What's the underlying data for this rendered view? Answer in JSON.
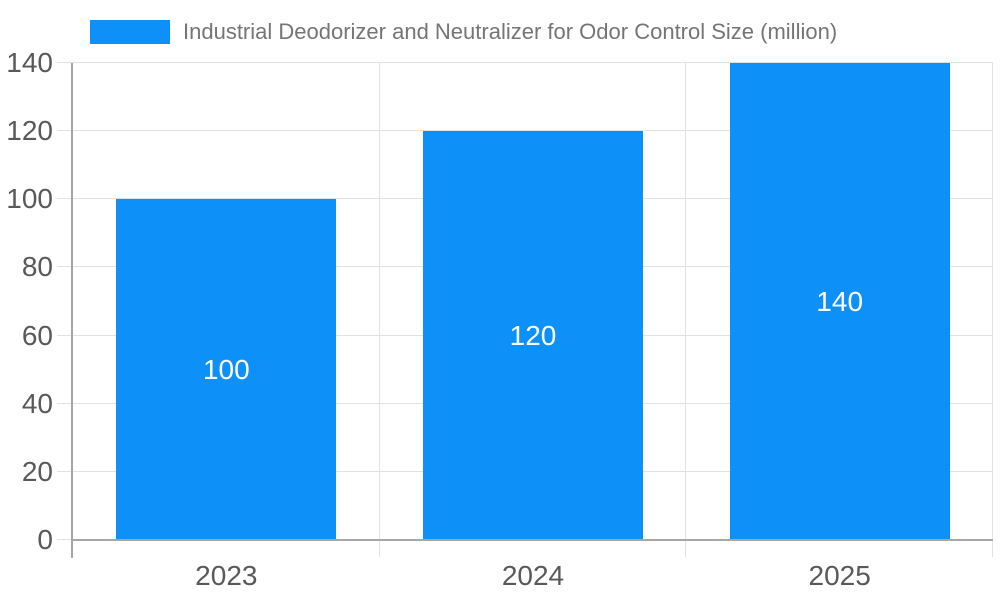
{
  "chart_data": {
    "type": "bar",
    "title": "Industrial Deodorizer and Neutralizer for Odor Control Size (million)",
    "categories": [
      "2023",
      "2024",
      "2025"
    ],
    "values": [
      100,
      120,
      140
    ],
    "bar_labels": [
      "100",
      "120",
      "140"
    ],
    "series": [
      {
        "name": "Industrial Deodorizer and Neutralizer for Odor Control Size (million)",
        "values": [
          100,
          120,
          140
        ]
      }
    ],
    "xlabel": "",
    "ylabel": "",
    "ylim": [
      0,
      140
    ],
    "yticks": [
      0,
      20,
      40,
      60,
      80,
      100,
      120,
      140
    ],
    "grid": true,
    "legend_position": "top-left",
    "colors": {
      "bar": "#0e90f9",
      "bar_label_text": "#ffffff",
      "grid_line": "#e2e2e2",
      "axis_line": "#a6a6a6",
      "tick_label_text": "#595959",
      "legend_text": "#757575",
      "background": "#ffffff"
    }
  }
}
